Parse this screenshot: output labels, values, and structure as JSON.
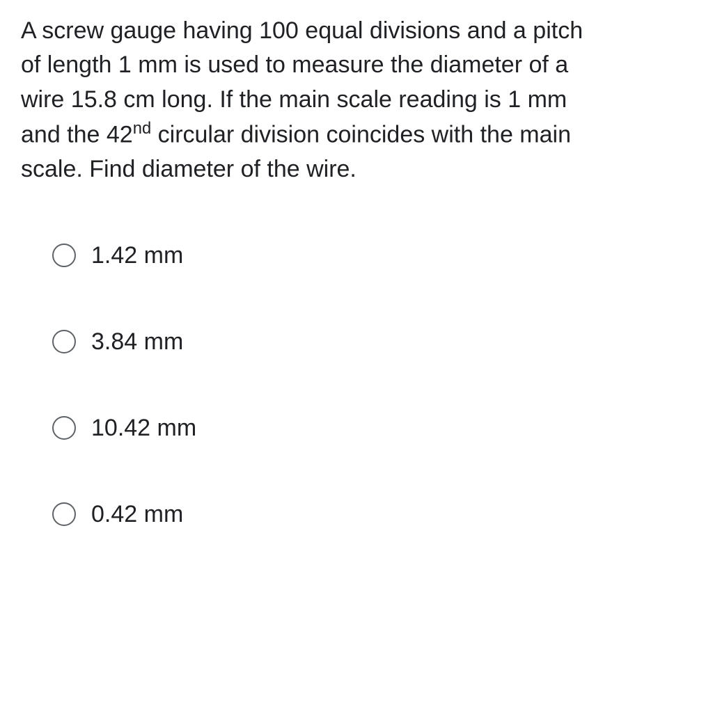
{
  "question": {
    "line1": "A screw gauge having 100 equal divisions and a pitch",
    "line2": "of length 1 mm is used to measure the diameter of a",
    "line3": "wire 15.8 cm long. If the main scale reading is 1 mm",
    "line4_pre": "and the 42",
    "line4_sup": "nd",
    "line4_post": " circular division coincides with the main",
    "line5": "scale. Find diameter of the wire."
  },
  "options": [
    {
      "label": "1.42 mm"
    },
    {
      "label": "3.84 mm"
    },
    {
      "label": "10.42 mm"
    },
    {
      "label": "0.42 mm"
    }
  ],
  "styling": {
    "text_color": "#202124",
    "radio_border_color": "#5f6368",
    "background_color": "#ffffff",
    "question_fontsize": 34,
    "option_fontsize": 34,
    "radio_size": 34,
    "option_gap": 85
  }
}
